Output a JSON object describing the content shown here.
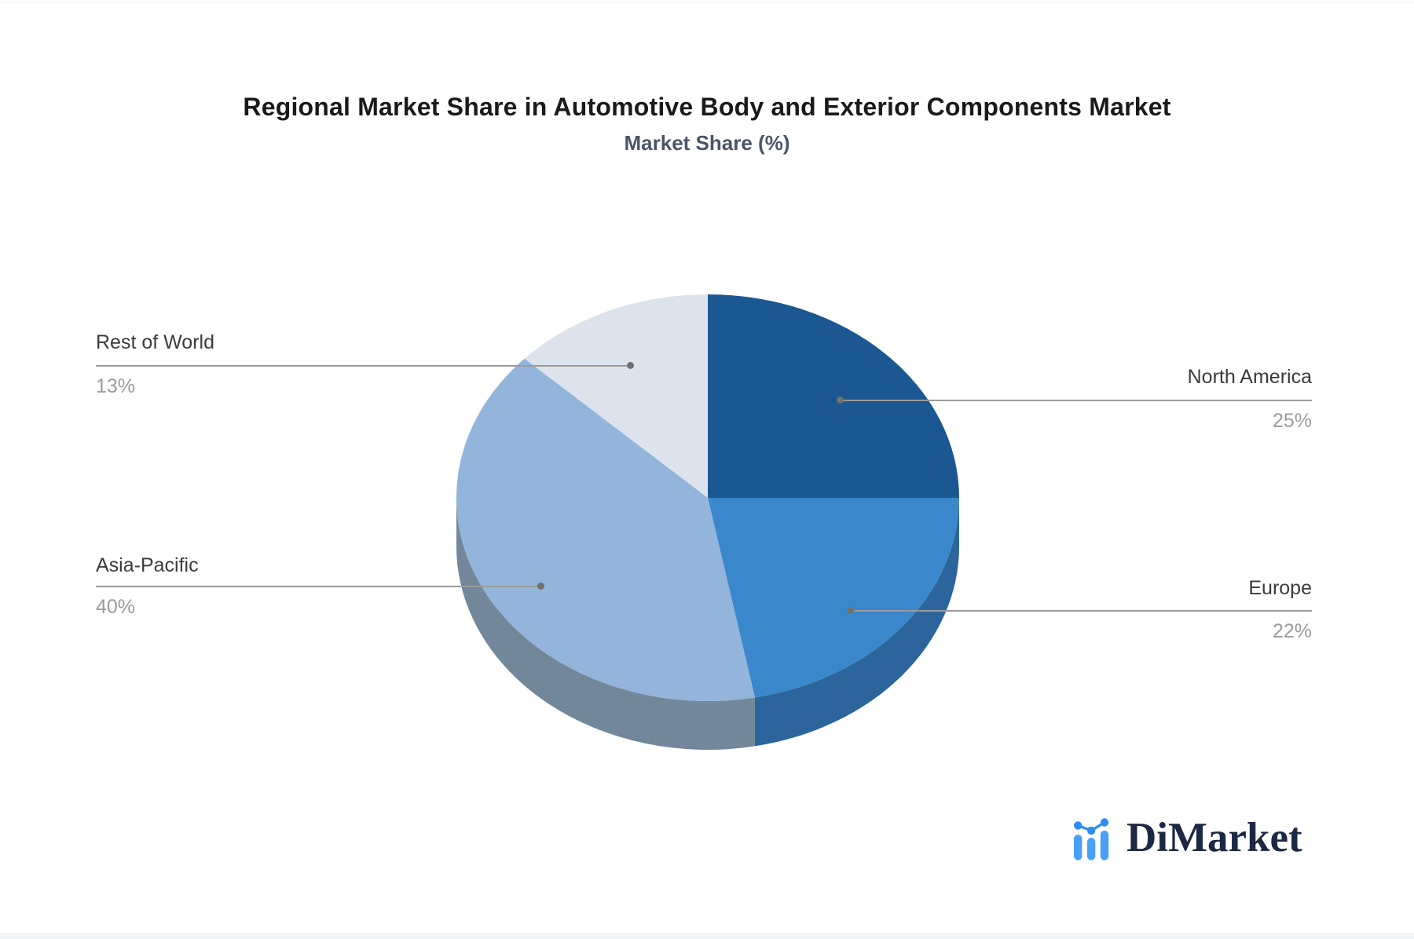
{
  "header": {
    "title": "Regional Market Share in Automotive Body and Exterior Components Market",
    "subtitle": "Market Share (%)"
  },
  "chart_data": {
    "type": "pie",
    "style": "3d",
    "title": "Regional Market Share in Automotive Body and Exterior Components Market",
    "subtitle": "Market Share (%)",
    "unit": "%",
    "direction": "clockwise",
    "start_angle_deg": 0,
    "legend": "none",
    "slices": [
      {
        "name": "North America",
        "value": 25,
        "value_text": "25%",
        "color": "#1b5791",
        "side_color": "#15477a",
        "callout_side": "right"
      },
      {
        "name": "Europe",
        "value": 22,
        "value_text": "22%",
        "color": "#3b87cb",
        "side_color": "#2c659b",
        "callout_side": "right"
      },
      {
        "name": "Asia-Pacific",
        "value": 40,
        "value_text": "40%",
        "color": "#93b5dc",
        "side_color": "#73879b",
        "callout_side": "left"
      },
      {
        "name": "Rest of World",
        "value": 13,
        "value_text": "13%",
        "color": "#dde3ed",
        "side_color": "#aab6c4",
        "callout_side": "left"
      }
    ],
    "title_color": "#1a1a1a",
    "subtitle_color": "#4a5568",
    "label_color": "#3b3b3b",
    "value_color": "#9b9b9b",
    "leader_line_color": "#9a9a9a",
    "leader_dot_color": "#717171"
  },
  "brand": {
    "name": "DiMarket",
    "icon": "bar-line-chart-icon",
    "text_color": "#1b2944",
    "icon_color": "#4aa0f7",
    "icon_accent_color": "#2e8df2"
  }
}
